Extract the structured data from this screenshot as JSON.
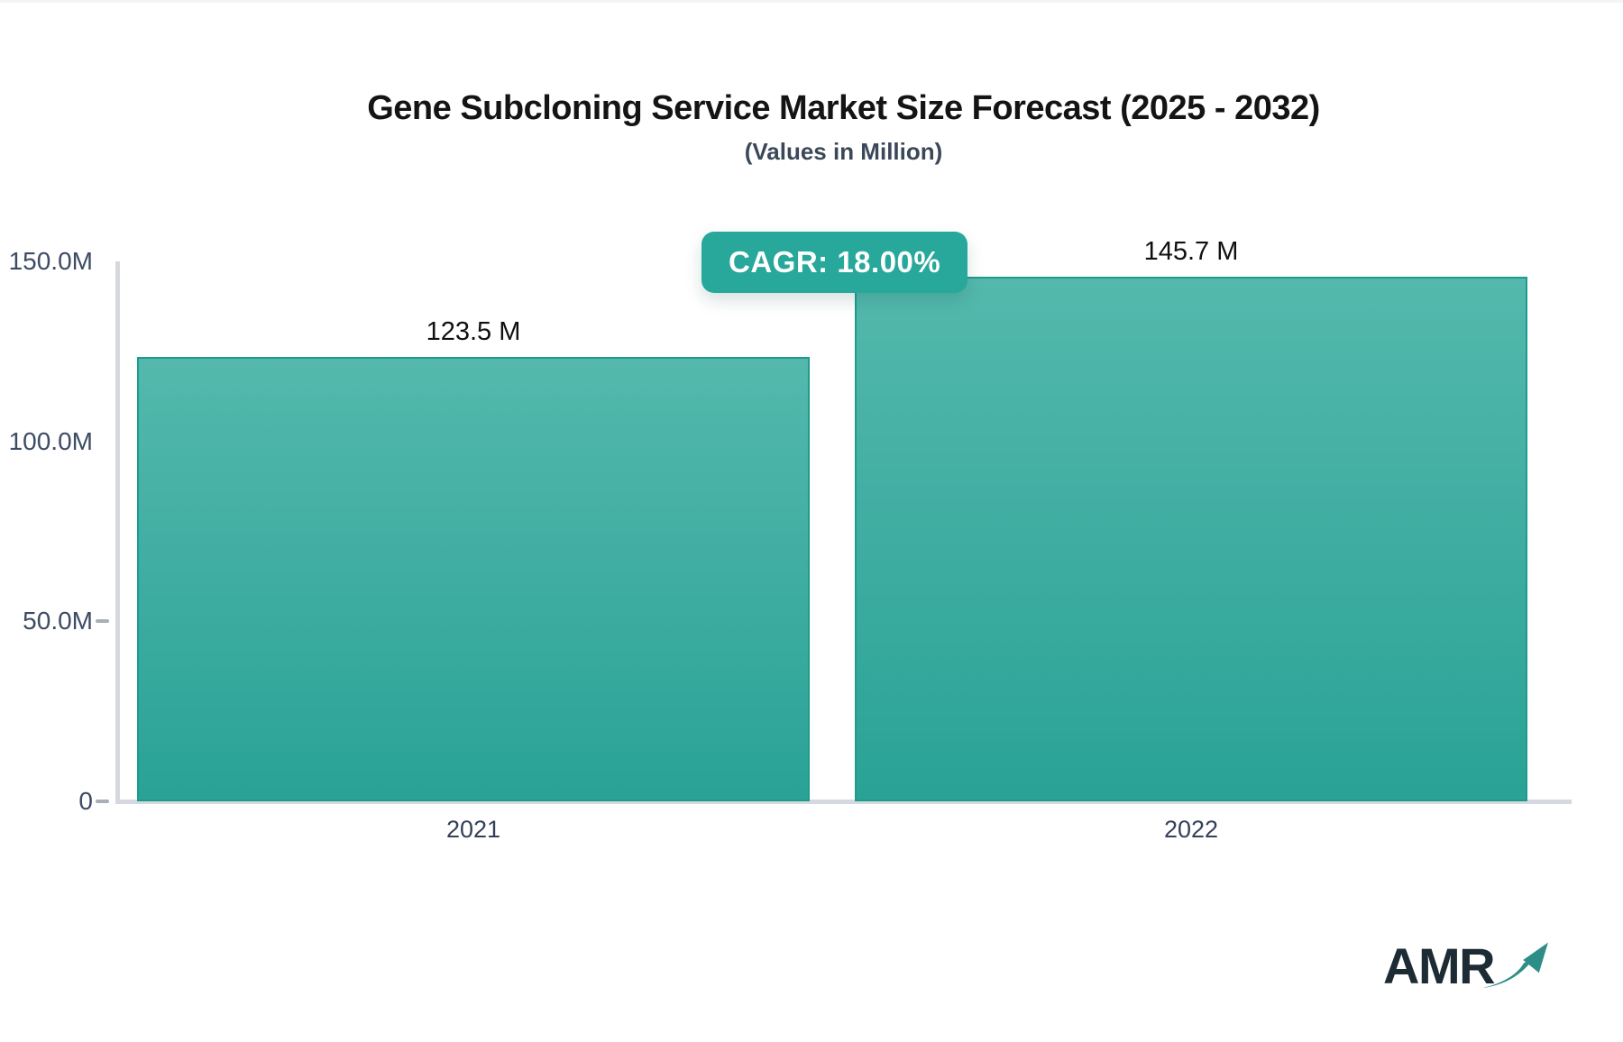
{
  "title": "Gene Subcloning Service Market Size Forecast (2025 - 2032)",
  "subtitle": "(Values in Million)",
  "cagr_badge": "CAGR: 18.00%",
  "logo": {
    "text": "AMR",
    "arrow_icon": "growth-arrow-icon"
  },
  "colors": {
    "accent_teal": "#28a79b",
    "bar_gradient_top": "#54b8ad",
    "bar_gradient_bottom": "#2aa296",
    "bar_border": "#1f9b8e",
    "badge_bg": "#28a79b",
    "badge_text": "#ffffff",
    "axis_line": "#d5d8de",
    "tick_label": "#3d4b63",
    "axis_category_label": "#33405a",
    "value_label": "#101010",
    "title_color": "#141414",
    "subtitle_color": "#3b4859",
    "logo_text": "#1d2b35",
    "logo_arrow": "#2d8e87"
  },
  "chart_data": {
    "type": "bar",
    "title": "Gene Subcloning Service Market Size Forecast (2025 - 2032)",
    "subtitle": "(Values in Million)",
    "categories": [
      "2021",
      "2022"
    ],
    "values": [
      123.5,
      145.7
    ],
    "value_labels": [
      "123.5 M",
      "145.7 M"
    ],
    "unit": "Million",
    "ylim": [
      0,
      150
    ],
    "yticks": [
      {
        "value": 150,
        "label": "150.0M",
        "dash": false
      },
      {
        "value": 100,
        "label": "100.0M",
        "dash": false
      },
      {
        "value": 50,
        "label": "50.0M",
        "dash": true
      },
      {
        "value": 0,
        "label": "0",
        "dash": true
      }
    ],
    "grid": false,
    "legend": false,
    "annotations": [
      "CAGR: 18.00%"
    ]
  }
}
